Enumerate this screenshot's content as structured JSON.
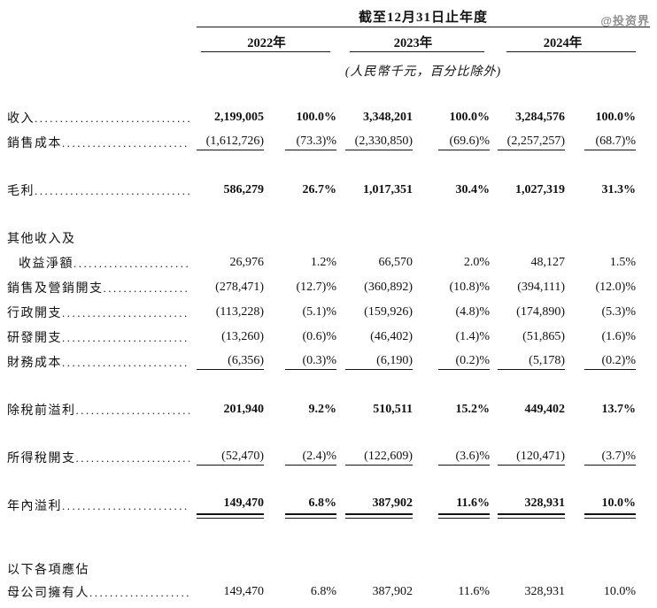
{
  "watermark": "@投资界",
  "table": {
    "period_header": "截至12月31日止年度",
    "year_headers": [
      "2022年",
      "2023年",
      "2024年"
    ],
    "unit_note": "(人民幣千元，百分比除外)",
    "column_kinds": [
      "value",
      "percent",
      "value",
      "percent",
      "value",
      "percent"
    ],
    "rows": [
      {
        "label": "收入",
        "dots": true,
        "bold": true,
        "values": [
          "2,199,005",
          "100.0%",
          "3,348,201",
          "100.0%",
          "3,284,576",
          "100.0%"
        ]
      },
      {
        "label": "銷售成本",
        "dots": true,
        "underline": "single",
        "values": [
          "(1,612,726)",
          "(73.3)%",
          "(2,330,850)",
          "(69.6)%",
          "(2,257,257)",
          "(68.7)%"
        ]
      },
      {
        "kind": "gap"
      },
      {
        "label": "毛利",
        "dots": true,
        "bold": true,
        "values": [
          "586,279",
          "26.7%",
          "1,017,351",
          "30.4%",
          "1,027,319",
          "31.3%"
        ]
      },
      {
        "kind": "gap"
      },
      {
        "label": "其他收入及",
        "dots": false,
        "values": null
      },
      {
        "label": "收益淨額",
        "indent": true,
        "dots": true,
        "values": [
          "26,976",
          "1.2%",
          "66,570",
          "2.0%",
          "48,127",
          "1.5%"
        ]
      },
      {
        "label": "銷售及營銷開支",
        "dots": true,
        "values": [
          "(278,471)",
          "(12.7)%",
          "(360,892)",
          "(10.8)%",
          "(394,111)",
          "(12.0)%"
        ]
      },
      {
        "label": "行政開支",
        "dots": true,
        "values": [
          "(113,228)",
          "(5.1)%",
          "(159,926)",
          "(4.8)%",
          "(174,890)",
          "(5.3)%"
        ]
      },
      {
        "label": "研發開支",
        "dots": true,
        "values": [
          "(13,260)",
          "(0.6)%",
          "(46,402)",
          "(1.4)%",
          "(51,865)",
          "(1.6)%"
        ]
      },
      {
        "label": "財務成本",
        "dots": true,
        "underline": "single",
        "values": [
          "(6,356)",
          "(0.3)%",
          "(6,190)",
          "(0.2)%",
          "(5,178)",
          "(0.2)%"
        ]
      },
      {
        "kind": "gap"
      },
      {
        "label": "除稅前溢利",
        "dots": true,
        "bold": true,
        "values": [
          "201,940",
          "9.2%",
          "510,511",
          "15.2%",
          "449,402",
          "13.7%"
        ]
      },
      {
        "kind": "gap"
      },
      {
        "label": "所得稅開支",
        "dots": true,
        "underline": "single",
        "values": [
          "(52,470)",
          "(2.4)%",
          "(122,609)",
          "(3.6)%",
          "(120,471)",
          "(3.7)%"
        ]
      },
      {
        "kind": "gap"
      },
      {
        "label": "年內溢利",
        "dots": true,
        "bold": true,
        "underline": "double",
        "values": [
          "149,470",
          "6.8%",
          "387,902",
          "11.6%",
          "328,931",
          "10.0%"
        ]
      },
      {
        "kind": "gap-lg"
      },
      {
        "label": "以下各項應佔",
        "dots": false,
        "values": null,
        "short": true
      },
      {
        "label": "母公司擁有人",
        "dots": true,
        "values": [
          "149,470",
          "6.8%",
          "387,902",
          "11.6%",
          "328,931",
          "10.0%"
        ]
      }
    ]
  }
}
